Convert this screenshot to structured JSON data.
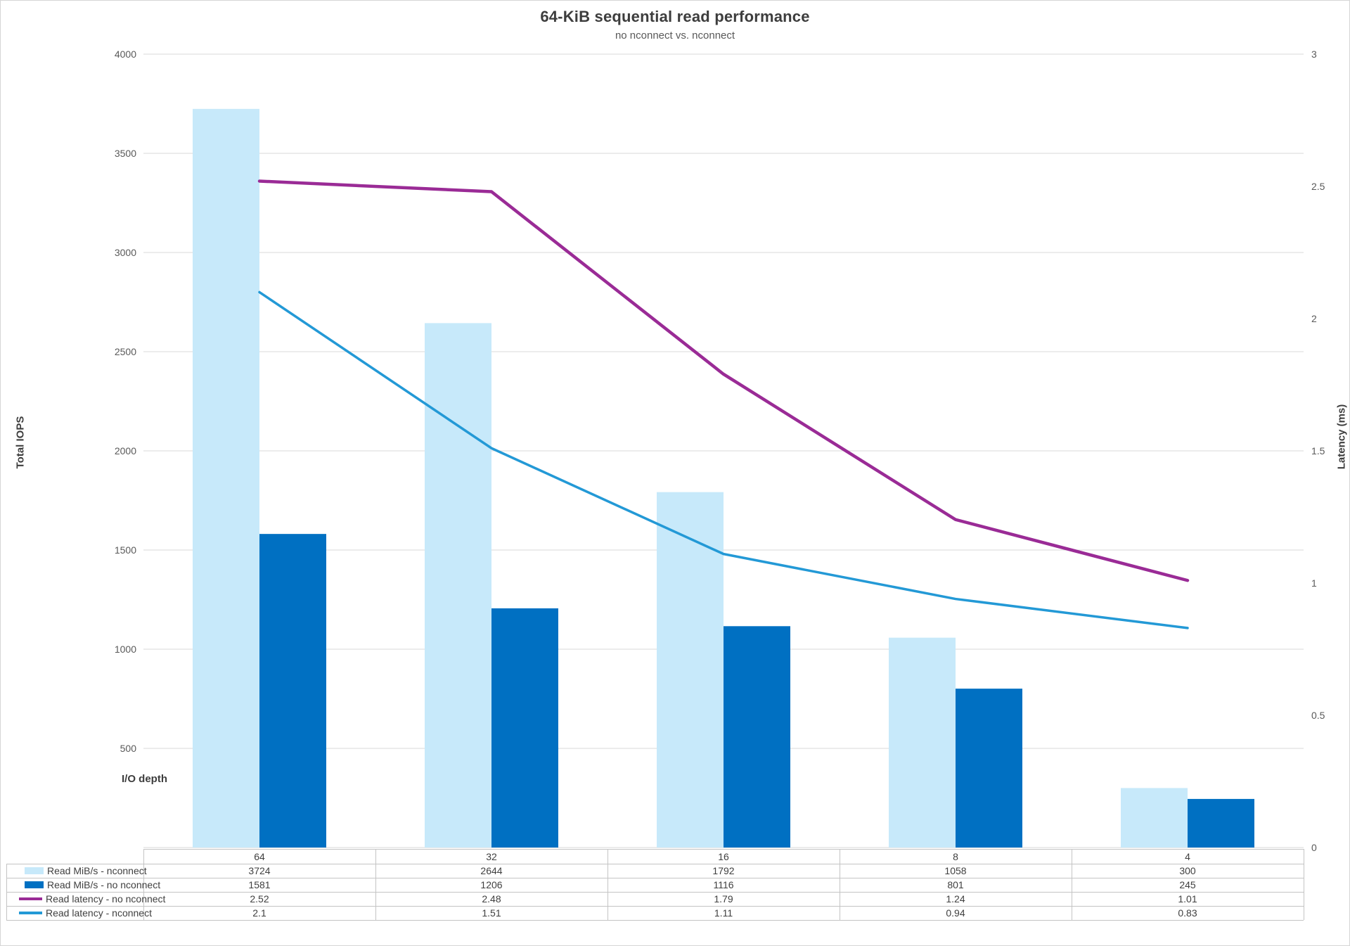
{
  "title": "64-KiB sequential read performance",
  "subtitle": "no nconnect vs. nconnect",
  "chart_data": {
    "type": "combo-bar-line",
    "categories": [
      "64",
      "32",
      "16",
      "8",
      "4"
    ],
    "series": [
      {
        "name": "Read MiB/s - nconnect",
        "type": "bar",
        "axis": "left",
        "color": "#c7e9fa",
        "values": [
          3724,
          2644,
          1792,
          1058,
          300
        ]
      },
      {
        "name": "Read MiB/s - no nconnect",
        "type": "bar",
        "axis": "left",
        "color": "#0070c2",
        "values": [
          1581,
          1206,
          1116,
          801,
          245
        ]
      },
      {
        "name": "Read latency - no nconnect",
        "type": "line",
        "axis": "right",
        "color": "#9a2b96",
        "values": [
          2.52,
          2.48,
          1.79,
          1.24,
          1.01
        ]
      },
      {
        "name": "Read latency - nconnect",
        "type": "line",
        "axis": "right",
        "color": "#2399d6",
        "values": [
          2.1,
          1.51,
          1.11,
          0.94,
          0.83
        ]
      }
    ],
    "title": "64-KiB sequential read performance",
    "subtitle": "no nconnect vs. nconnect",
    "xlabel": "I/O depth",
    "ylabel": "Total IOPS",
    "ylabel_right": "Latency (ms)",
    "ylim_left": [
      0,
      4000
    ],
    "ylim_right": [
      0,
      3
    ],
    "left_ticks": [
      4000,
      3500,
      3000,
      2500,
      2000,
      1500,
      1000,
      500
    ],
    "right_ticks": [
      3,
      2.5,
      2,
      1.5,
      1,
      0.5,
      0
    ],
    "grid": true,
    "legend_position": "data-table-left"
  },
  "colors": {
    "grid": "#d9d9d9",
    "table_border": "#c4c4c4",
    "tick_text": "#595959",
    "text": "#3f3f3f",
    "title_text": "#3d3d3d"
  }
}
